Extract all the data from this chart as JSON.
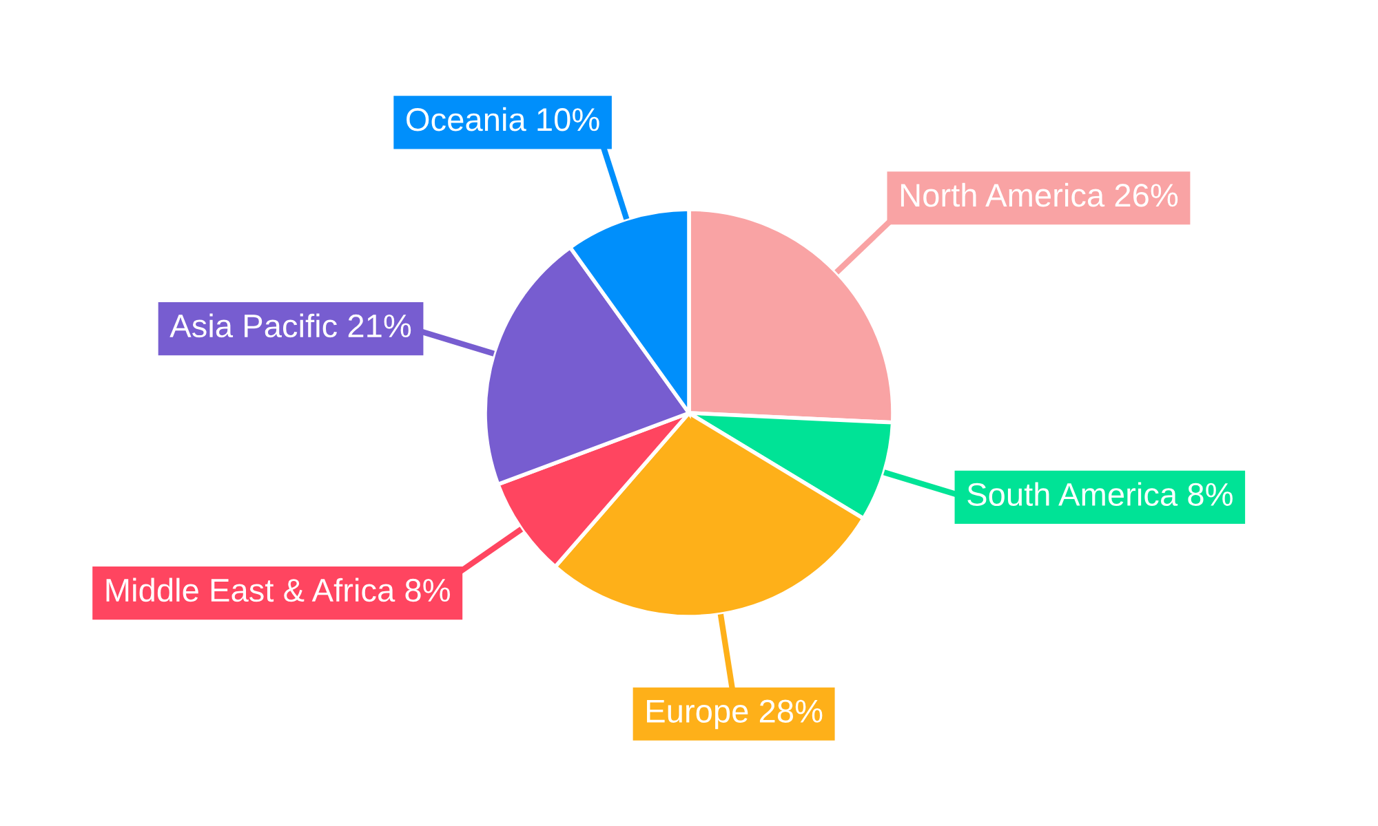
{
  "chart_data": {
    "type": "pie",
    "categories": [
      "North America",
      "South America",
      "Europe",
      "Middle East & Africa",
      "Asia Pacific",
      "Oceania"
    ],
    "values": [
      26,
      8,
      28,
      8,
      21,
      10
    ],
    "value_labels": [
      "26%",
      "8%",
      "28%",
      "8%",
      "21%",
      "10%"
    ],
    "colors": [
      "#f9a3a4",
      "#00e396",
      "#feb019",
      "#ff4560",
      "#775dd0",
      "#008ffb"
    ]
  }
}
